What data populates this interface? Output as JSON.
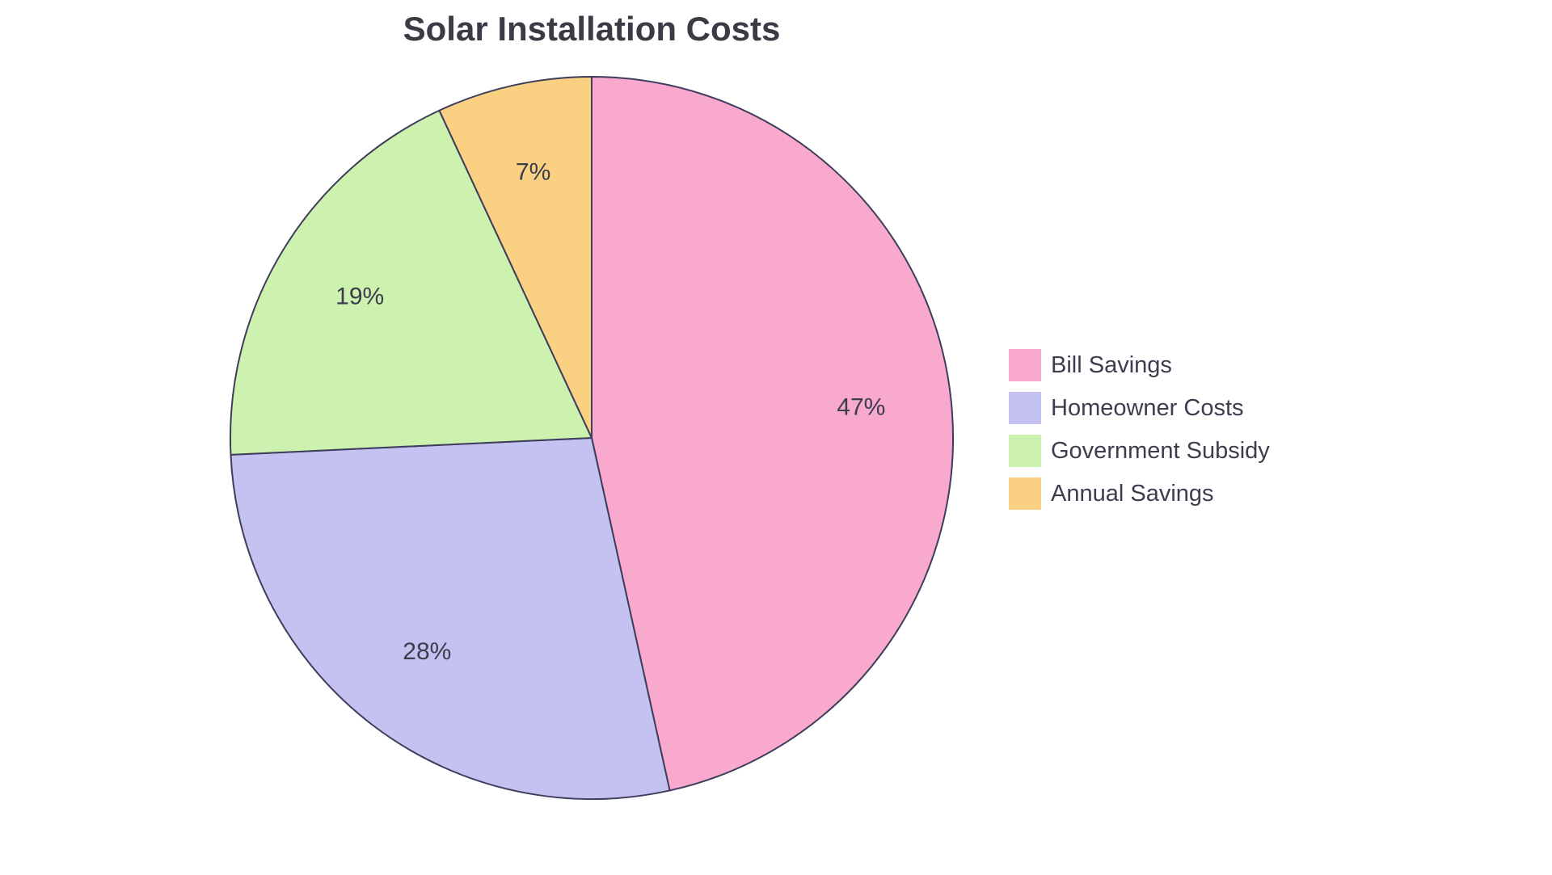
{
  "chart_data": {
    "type": "pie",
    "title": "Solar Installation Costs",
    "labels": [
      "Bill Savings",
      "Homeowner Costs",
      "Government Subsidy",
      "Annual Savings"
    ],
    "values": [
      47,
      28,
      19,
      7
    ],
    "slice_labels": [
      "47%",
      "28%",
      "19%",
      "7%"
    ],
    "unit": "%",
    "colors": [
      "#F9A8CE",
      "#C3C2F0",
      "#CDF1AE",
      "#FAD182"
    ],
    "stroke_color": "#3E3D5C",
    "text_color": "#3C3D4E",
    "start_angle_deg": 0,
    "direction": "clockwise",
    "legend_position": "right",
    "legend_entries": [
      "Bill Savings",
      "Homeowner Costs",
      "Government Subsidy",
      "Annual Savings"
    ]
  }
}
